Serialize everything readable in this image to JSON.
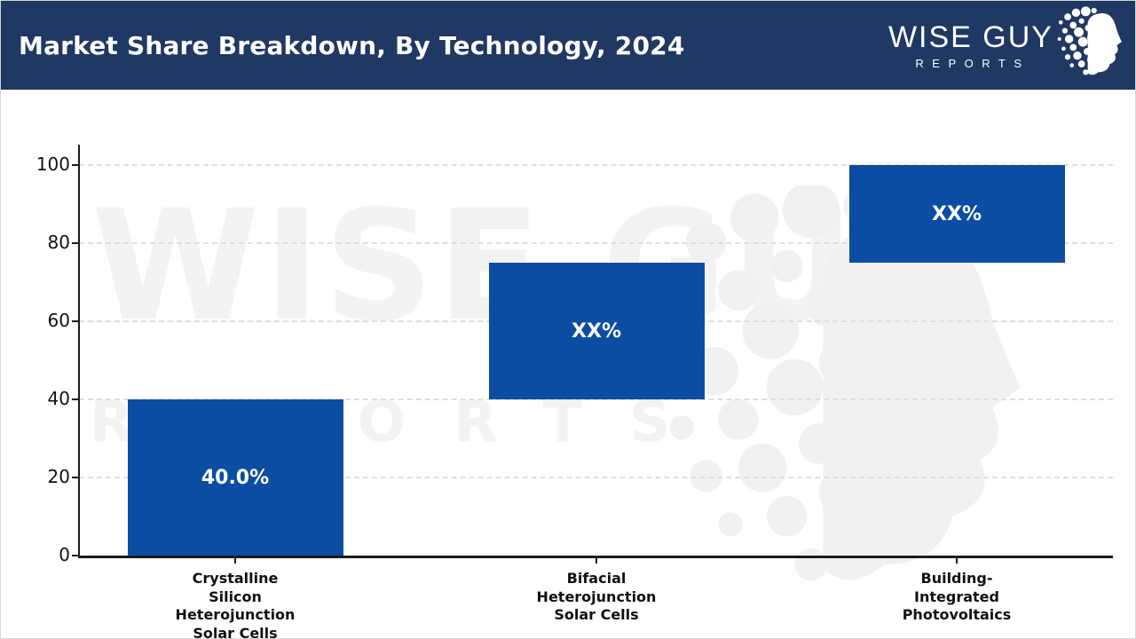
{
  "header": {
    "title": "Market Share Breakdown, By Technology, 2024",
    "bg_color": "#1f3864",
    "logo": {
      "wise_guy": "WISE GUY",
      "reports": "REPORTS"
    }
  },
  "watermark": {
    "wise_guy": "WISE GUY",
    "reports": "REPORTS"
  },
  "chart_data": {
    "type": "bar",
    "subtype": "waterfall",
    "title": "Market Share Breakdown, By Technology, 2024",
    "categories": [
      "Crystalline Silicon Heterojunction Solar Cells",
      "Bifacial Heterojunction Solar Cells",
      "Building-Integrated Photovoltaics"
    ],
    "category_lines": [
      [
        "Crystalline",
        "Silicon",
        "Heterojunction",
        "Solar Cells"
      ],
      [
        "Bifacial",
        "Heterojunction",
        "Solar Cells"
      ],
      [
        "Building-",
        "Integrated",
        "Photovoltaics"
      ]
    ],
    "segments": [
      {
        "start": 0,
        "end": 40,
        "label": "40.0%"
      },
      {
        "start": 40,
        "end": 75,
        "label": "XX%"
      },
      {
        "start": 75,
        "end": 100,
        "label": "XX%"
      }
    ],
    "yticks": [
      0,
      20,
      40,
      60,
      80,
      100
    ],
    "ylim": [
      0,
      105
    ],
    "ylabel": "",
    "xlabel": "",
    "bar_color": "#0b4da2",
    "grid": "horizontal-dashed",
    "legend": "none"
  }
}
